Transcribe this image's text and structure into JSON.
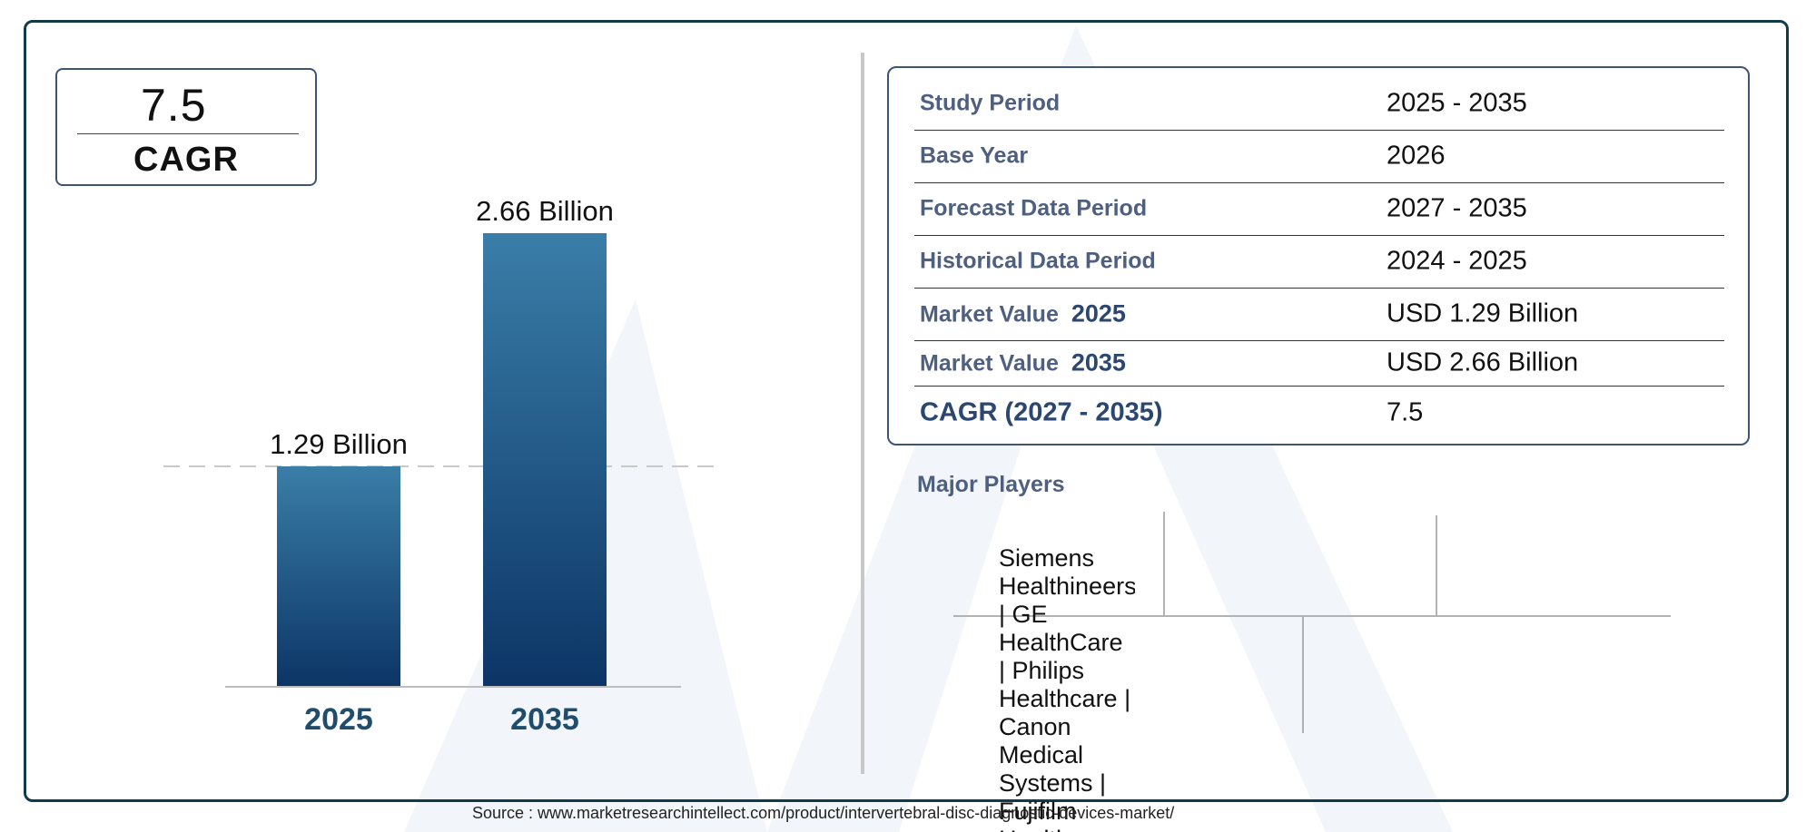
{
  "cagr_box": {
    "value": "7.5",
    "label": "CAGR"
  },
  "chart_data": {
    "type": "bar",
    "categories": [
      "2025",
      "2035"
    ],
    "values": [
      1.29,
      2.66
    ],
    "data_labels": [
      "1.29 Billion",
      "2.66 Billion"
    ],
    "title": "",
    "xlabel": "",
    "ylabel": "",
    "ylim": [
      0,
      2.66
    ],
    "reference_line": 1.29,
    "grid": false,
    "legend": "none",
    "colors": {
      "bar_top": "#3a7ea8",
      "bar_bottom": "#0c3566",
      "tick_label": "#1f4d6b"
    }
  },
  "summary_table": {
    "rows": [
      {
        "key": "Study Period",
        "value": "2025 - 2035"
      },
      {
        "key": "Base Year",
        "value": "2026"
      },
      {
        "key": "Forecast Data Period",
        "value": "2027 - 2035"
      },
      {
        "key": "Historical Data Period",
        "value": "2024 - 2025"
      },
      {
        "key": "Market Value",
        "year": "2025",
        "value": "USD 1.29 Billion"
      },
      {
        "key": "Market Value",
        "year": "2035",
        "value": "USD 2.66 Billion"
      },
      {
        "key": "CAGR (2027 - 2035)",
        "value": "7.5"
      }
    ]
  },
  "major_players": {
    "title": "Major Players",
    "text": "Siemens Healthineers | GE HealthCare | Philips Healthcare | Canon Medical Systems | Fujifilm Healthcare"
  },
  "source": "Source : www.marketresearchintellect.com/product/intervertebral-disc-diagnostic-devices-market/",
  "colors": {
    "frame": "#123b4a",
    "box_border": "#3d5378",
    "key_text": "#4e5f80"
  }
}
